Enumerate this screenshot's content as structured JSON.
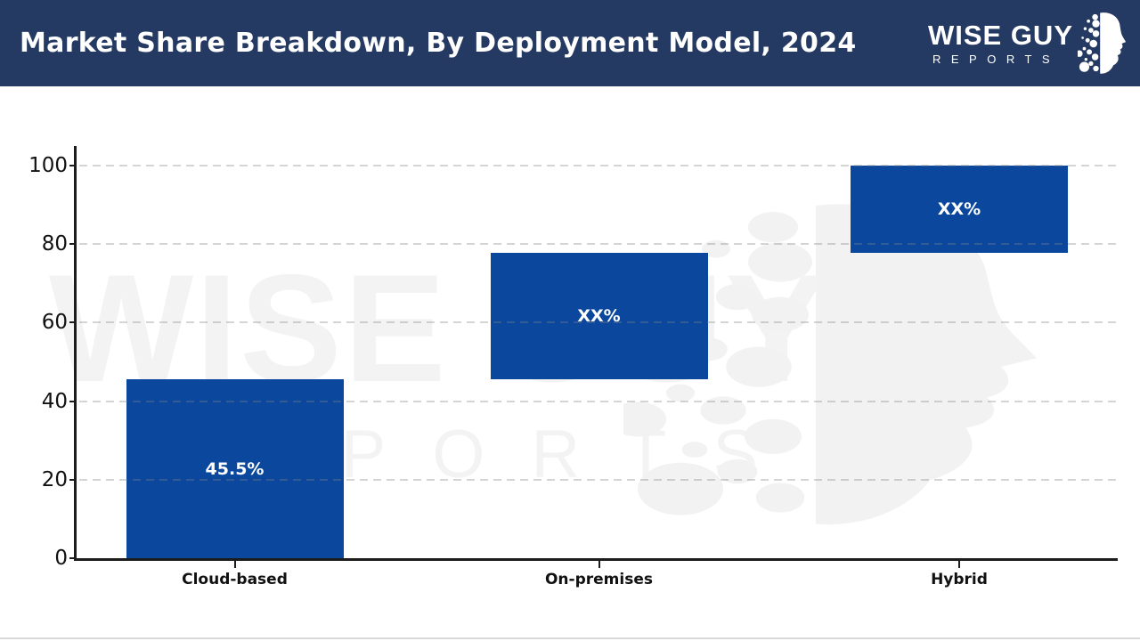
{
  "header": {
    "title": "Market Share Breakdown, By Deployment Model, 2024",
    "background_color": "#253a63",
    "brand": {
      "name": "WISE GUY",
      "subtitle": "REPORTS",
      "head_icon": "wiseguy-head-icon"
    }
  },
  "chart_data": {
    "type": "bar",
    "subtype": "floating-segment-waterfall",
    "title": "Market Share Breakdown, By Deployment Model, 2024",
    "categories": [
      "Cloud-based",
      "On-premises",
      "Hybrid"
    ],
    "segments": [
      {
        "category": "Cloud-based",
        "start": 0,
        "end": 45.5,
        "value": 45.5,
        "value_label": "45.5%"
      },
      {
        "category": "On-premises",
        "start": 45.5,
        "end": 77.7,
        "value": 32.2,
        "value_label": "XX%"
      },
      {
        "category": "Hybrid",
        "start": 77.7,
        "end": 100,
        "value": 22.3,
        "value_label": "XX%"
      }
    ],
    "xlabel": "",
    "ylabel": "",
    "ylim": [
      0,
      100
    ],
    "yticks": [
      0,
      20,
      40,
      60,
      80,
      100
    ],
    "grid": {
      "horizontal": true,
      "style": "dashed",
      "color": "#d9d9d9",
      "over_bars": true
    },
    "legend": "none",
    "bar_color": "#0b479d",
    "bar_label_color": "#ffffff",
    "axis_color": "#1c1c1c",
    "tick_label_color": "#111111",
    "background": "#ffffff"
  },
  "watermark": {
    "name": "WISE GUY",
    "subtitle": "REPORTS",
    "color": "#f3f3f3"
  }
}
